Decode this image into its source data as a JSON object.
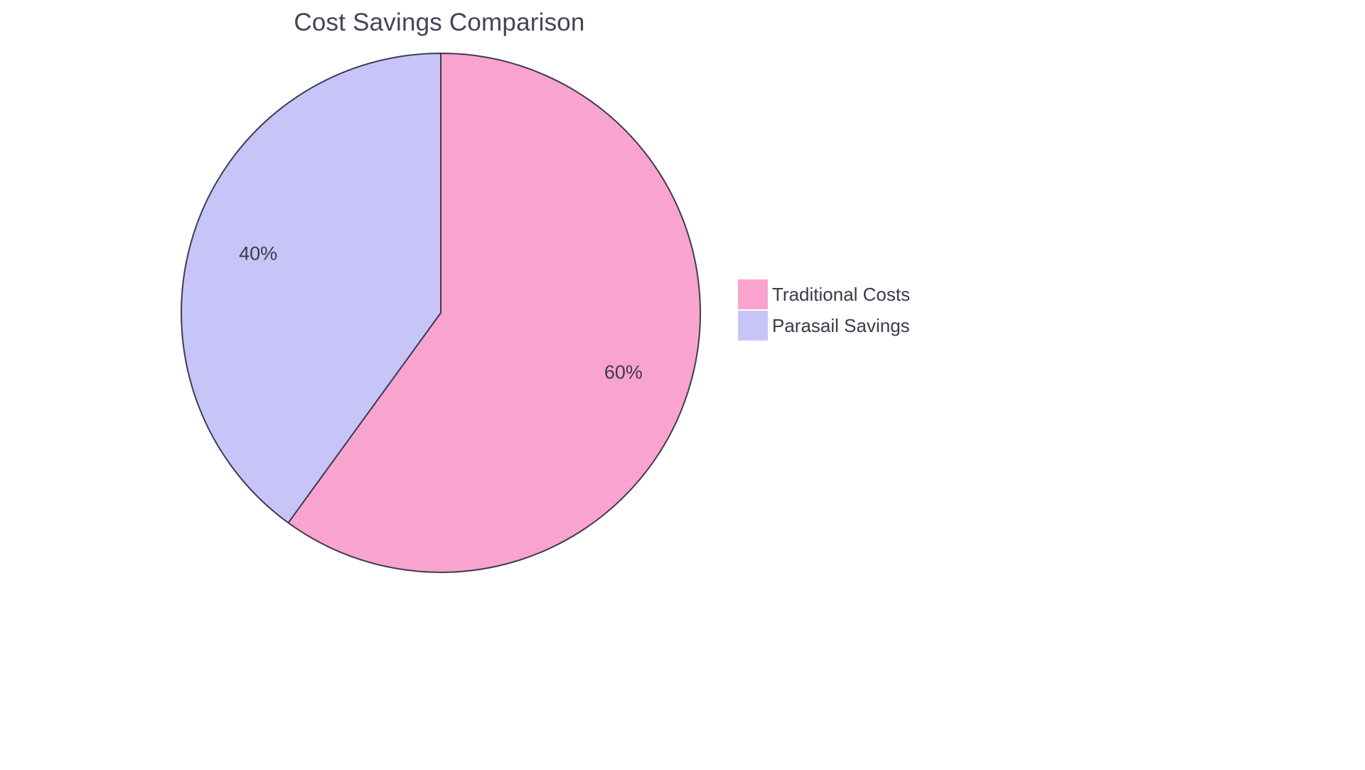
{
  "chart_data": {
    "type": "pie",
    "title": "Cost Savings Comparison",
    "labels": [
      "Traditional Costs",
      "Parasail Savings"
    ],
    "values": [
      60,
      40
    ],
    "value_labels": [
      "60%",
      "40%"
    ],
    "colors": [
      "#F9A4CE",
      "#C7C5F7"
    ],
    "slice_border_color": "#3F3B54",
    "slice_border_width": 2,
    "start_angle_deg": 0,
    "direction": "clockwise",
    "legend_position": "right",
    "label_text_color": "#3C3A4A",
    "title_text_color": "#45425A",
    "background_color": "#FFFFFF"
  }
}
